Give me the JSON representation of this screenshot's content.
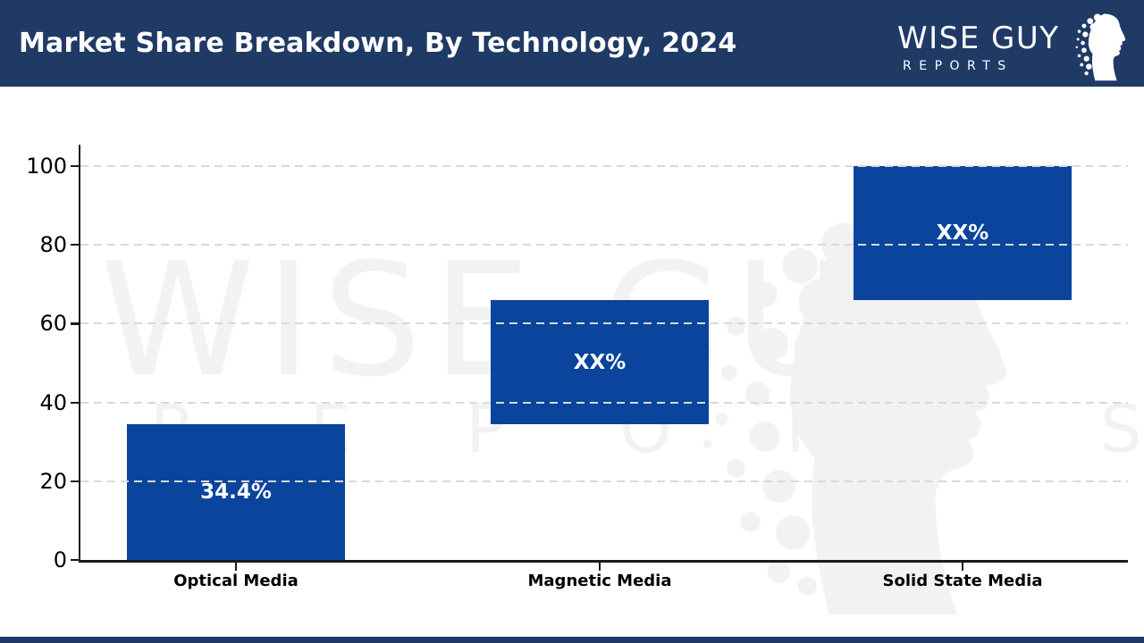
{
  "header": {
    "title": "Market Share Breakdown, By Technology, 2024",
    "bg_color": "#203A66",
    "logo": {
      "brand": "WISE GUY",
      "sub": "R E P O R T S"
    }
  },
  "watermark": {
    "brand": "WISE GUY",
    "sub": "R E P O R T S"
  },
  "chart_data": {
    "type": "bar",
    "subtype": "floating-waterfall",
    "title": "Market Share Breakdown, By Technology, 2024",
    "categories": [
      "Optical Media",
      "Magnetic Media",
      "Solid State Media"
    ],
    "segments": [
      {
        "category": "Optical Media",
        "start": 0,
        "end": 34.4,
        "label": "34.4%"
      },
      {
        "category": "Magnetic Media",
        "start": 34.4,
        "end": 66.0,
        "label": "XX%"
      },
      {
        "category": "Solid State Media",
        "start": 66.0,
        "end": 100.0,
        "label": "XX%"
      }
    ],
    "yticks": [
      0,
      20,
      40,
      60,
      80,
      100
    ],
    "ylim": [
      0,
      105
    ],
    "grid": "dashed-horizontal-over-bars",
    "legend": "none",
    "bar_color": "#0A449C",
    "bar_label_color": "#FFFFFF",
    "grid_color": "#D9D9D9",
    "axis_color": "#1A1A1A",
    "tick_label_color": "#000000"
  }
}
